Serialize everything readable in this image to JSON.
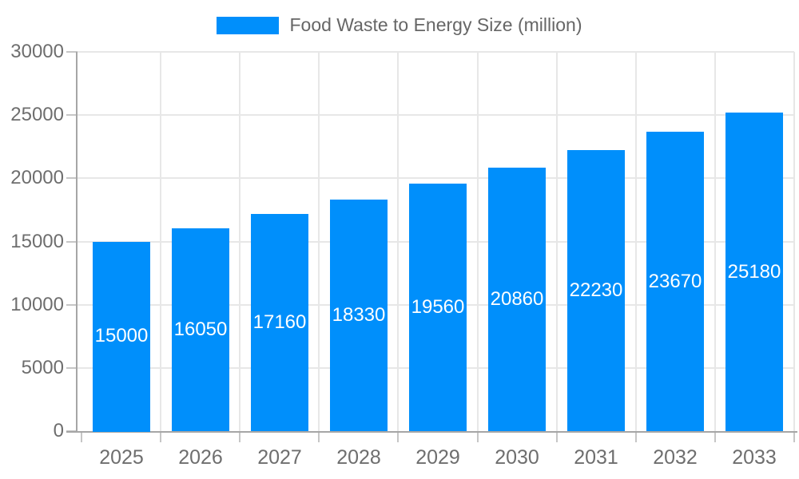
{
  "legend": {
    "label": "Food Waste to Energy Size (million)",
    "marker_color": "#008FFB"
  },
  "chart_data": {
    "type": "bar",
    "title": "Food Waste to Energy Size (million)",
    "categories": [
      "2025",
      "2026",
      "2027",
      "2028",
      "2029",
      "2030",
      "2031",
      "2032",
      "2033"
    ],
    "series": [
      {
        "name": "Food Waste to Energy Size (million)",
        "values": [
          15000,
          16050,
          17160,
          18330,
          19560,
          20860,
          22230,
          23670,
          25180
        ]
      }
    ],
    "xlabel": "",
    "ylabel": "",
    "ylim": [
      0,
      30000
    ],
    "yticks": [
      0,
      5000,
      10000,
      15000,
      20000,
      25000,
      30000
    ],
    "grid": true,
    "legend_position": "top-center",
    "value_labels": "inside-middle",
    "colors": {
      "bar": "#008FFB",
      "value_label": "#ffffff",
      "axis_text": "#6e6e6e",
      "grid_line": "#e7e7e7",
      "tick_line": "#c6c6c6",
      "axis_line": "#a6a6a6",
      "background": "#ffffff"
    }
  }
}
